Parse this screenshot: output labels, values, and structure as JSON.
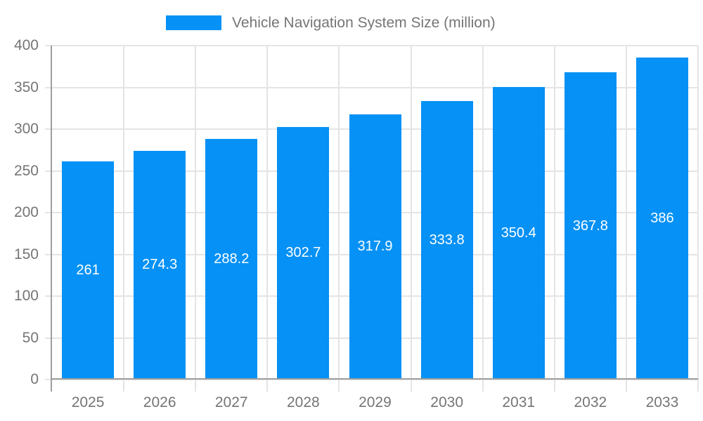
{
  "legend": {
    "label": "Vehicle Navigation System Size (million)"
  },
  "colors": {
    "bar": "#0591f5",
    "axis_line": "#9e9e9e",
    "gridline": "#e4e4e4",
    "tick_text": "#757575",
    "bar_label_text": "#ffffff",
    "background": "#ffffff"
  },
  "chart_data": {
    "type": "bar",
    "title": "Vehicle Navigation System Size (million)",
    "categories": [
      "2025",
      "2026",
      "2027",
      "2028",
      "2029",
      "2030",
      "2031",
      "2032",
      "2033"
    ],
    "values": [
      261,
      274.3,
      288.2,
      302.7,
      317.9,
      333.8,
      350.4,
      367.8,
      386
    ],
    "value_labels": [
      "261",
      "274.3",
      "288.2",
      "302.7",
      "317.9",
      "333.8",
      "350.4",
      "367.8",
      "386"
    ],
    "xlabel": "",
    "ylabel": "",
    "ylim": [
      0,
      400
    ],
    "ytick_step": 50,
    "yticks": [
      0,
      50,
      100,
      150,
      200,
      250,
      300,
      350,
      400
    ],
    "grid": true,
    "legend_position": "top"
  }
}
